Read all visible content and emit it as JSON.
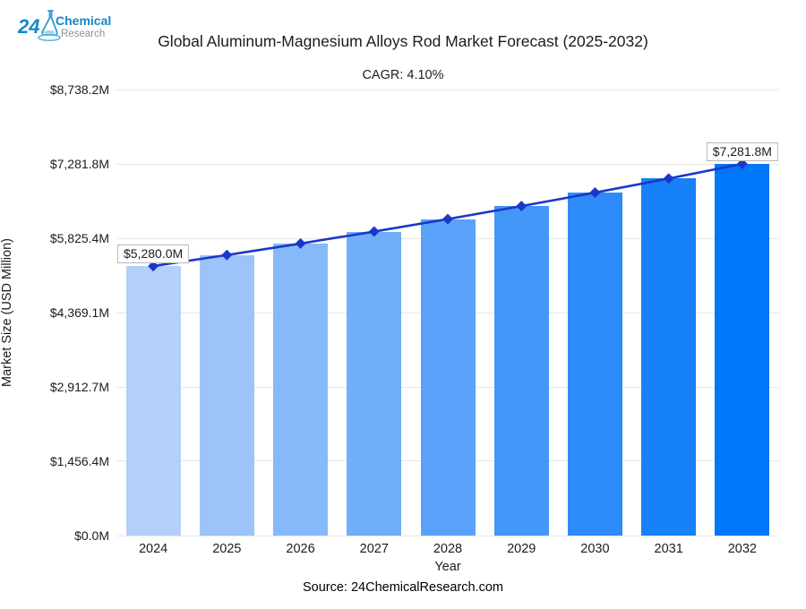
{
  "brand": {
    "name_24": "24",
    "name_chemical": "Chemical",
    "name_research": "Research",
    "color_blue": "#1687c9",
    "color_gray": "#8b909a"
  },
  "header": {
    "title": "Global Aluminum-Magnesium Alloys Rod Market Forecast (2025-2032)",
    "subtitle": "CAGR: 4.10%"
  },
  "footer": {
    "source": "Source: 24ChemicalResearch.com"
  },
  "chart_data": {
    "type": "bar",
    "overlay": "line",
    "title": "Global Aluminum-Magnesium Alloys Rod Market Forecast (2025-2032)",
    "subtitle": "CAGR: 4.10%",
    "xlabel": "Year",
    "ylabel": "Market Size (USD Million)",
    "categories": [
      "2024",
      "2025",
      "2026",
      "2027",
      "2028",
      "2029",
      "2030",
      "2031",
      "2032"
    ],
    "values": [
      5280.0,
      5496.5,
      5721.8,
      5956.4,
      6200.7,
      6454.9,
      6719.5,
      6995.0,
      7281.8
    ],
    "bar_colors": [
      "#b3cffa",
      "#9dc4fa",
      "#86b9fa",
      "#70aefa",
      "#5aa2f9",
      "#4397f9",
      "#2d8cf9",
      "#1681f9",
      "#0076f9"
    ],
    "line_color": "#1a38c8",
    "marker": "diamond",
    "ylim": [
      0,
      8738.2
    ],
    "yticks": {
      "values": [
        0,
        1456.4,
        2912.7,
        4369.1,
        5825.4,
        7281.8,
        8738.2
      ],
      "labels": [
        "$0.0M",
        "$1,456.4M",
        "$2,912.7M",
        "$4,369.1M",
        "$5,825.4M",
        "$7,281.8M",
        "$8,738.2M"
      ]
    },
    "grid": true,
    "legend": false,
    "data_labels": [
      {
        "index": 0,
        "text": "$5,280.0M"
      },
      {
        "index": 8,
        "text": "$7,281.8M"
      }
    ]
  }
}
